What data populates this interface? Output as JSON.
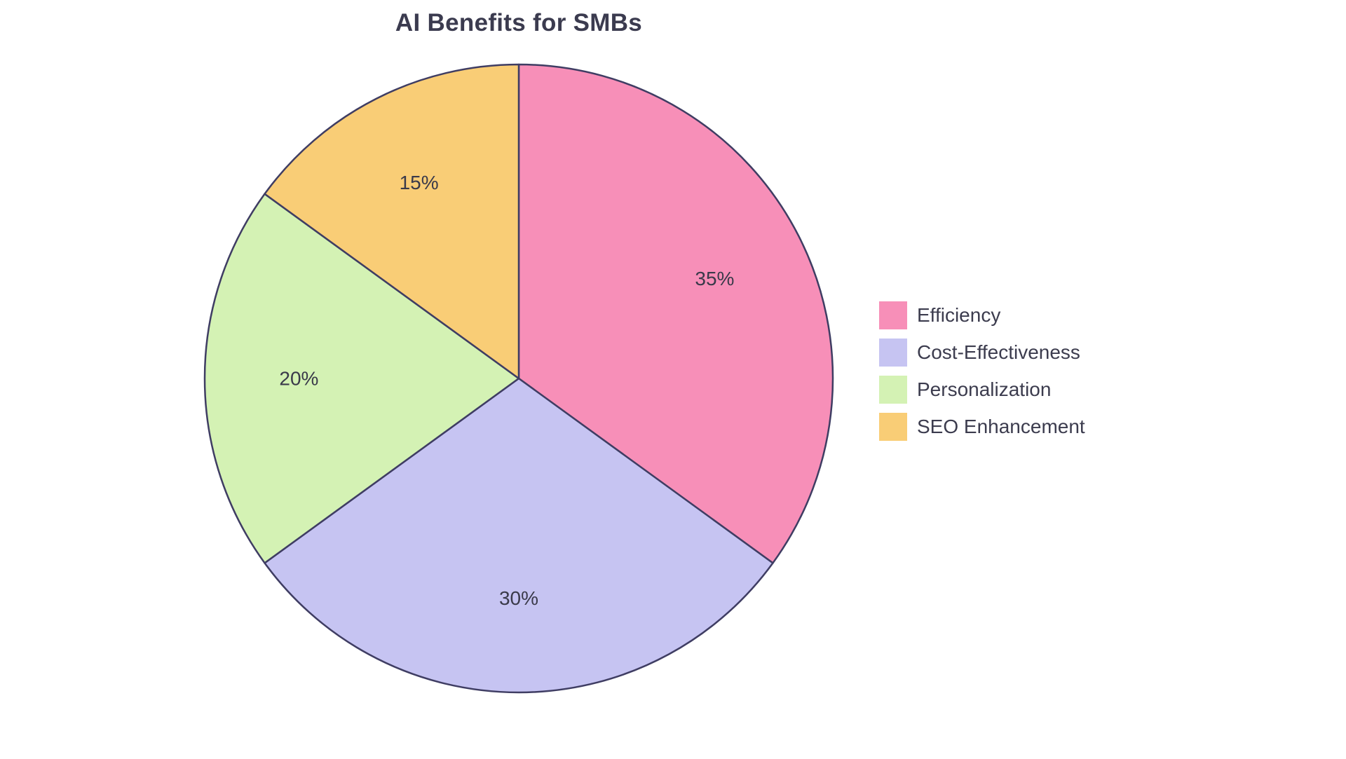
{
  "chart_data": {
    "type": "pie",
    "title": "AI Benefits for SMBs",
    "labels": [
      "Efficiency",
      "Cost-Effectiveness",
      "Personalization",
      "SEO Enhancement"
    ],
    "values": [
      35,
      30,
      20,
      15
    ],
    "value_labels": [
      "35%",
      "30%",
      "20%",
      "15%"
    ],
    "colors": [
      "#F78FB8",
      "#C6C4F2",
      "#D4F2B4",
      "#F9CD76"
    ],
    "slice_border_color": "#3F3D63",
    "label_color": "#3A3A4A",
    "legend_position": "right",
    "start_angle_deg": 0,
    "direction": "clockwise",
    "background": "#FFFFFF"
  }
}
